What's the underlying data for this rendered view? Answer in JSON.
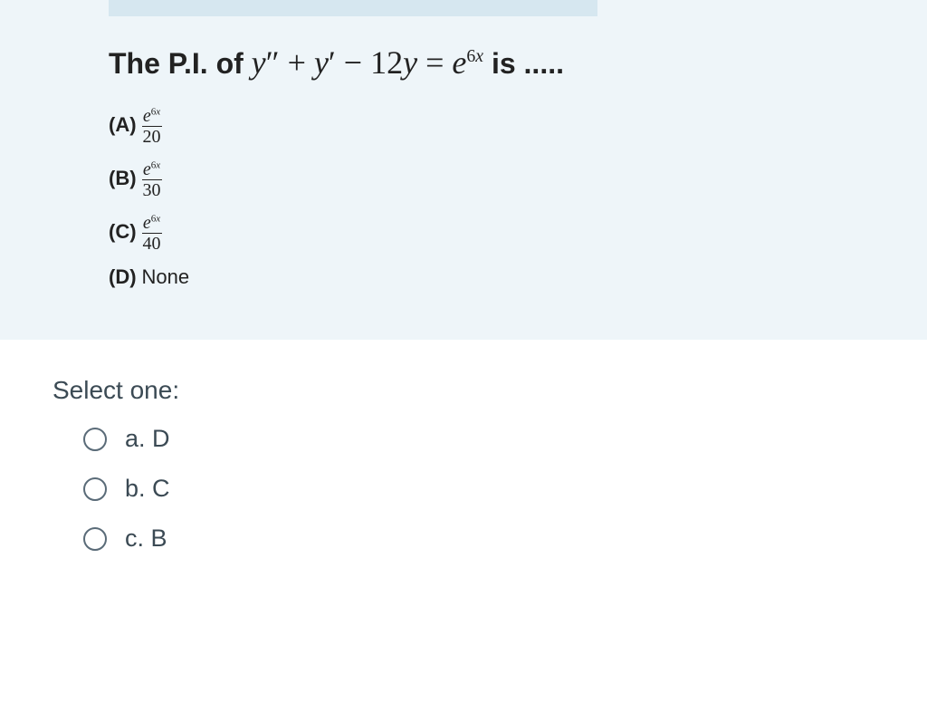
{
  "colors": {
    "question_bg": "#eef5f9",
    "top_strip": "#d6e7f0",
    "page_bg": "#ffffff",
    "text_dark": "#222222",
    "text_muted": "#3b4a54",
    "radio_border": "#5a6b78"
  },
  "question": {
    "stem_prefix": "The P.I. of ",
    "stem_math_html": "y'' + y' − 12y = e<sup>6x</sup>",
    "stem_suffix": " is .....",
    "options": [
      {
        "label": "(A)",
        "numerator": "e^{6x}",
        "denominator": "20"
      },
      {
        "label": "(B)",
        "numerator": "e^{6x}",
        "denominator": "30"
      },
      {
        "label": "(C)",
        "numerator": "e^{6x}",
        "denominator": "40"
      },
      {
        "label": "(D)",
        "text": "None"
      }
    ]
  },
  "select": {
    "title": "Select one:",
    "choices": [
      {
        "letter": "a.",
        "value": "D"
      },
      {
        "letter": "b.",
        "value": "C"
      },
      {
        "letter": "c.",
        "value": "B"
      }
    ]
  }
}
